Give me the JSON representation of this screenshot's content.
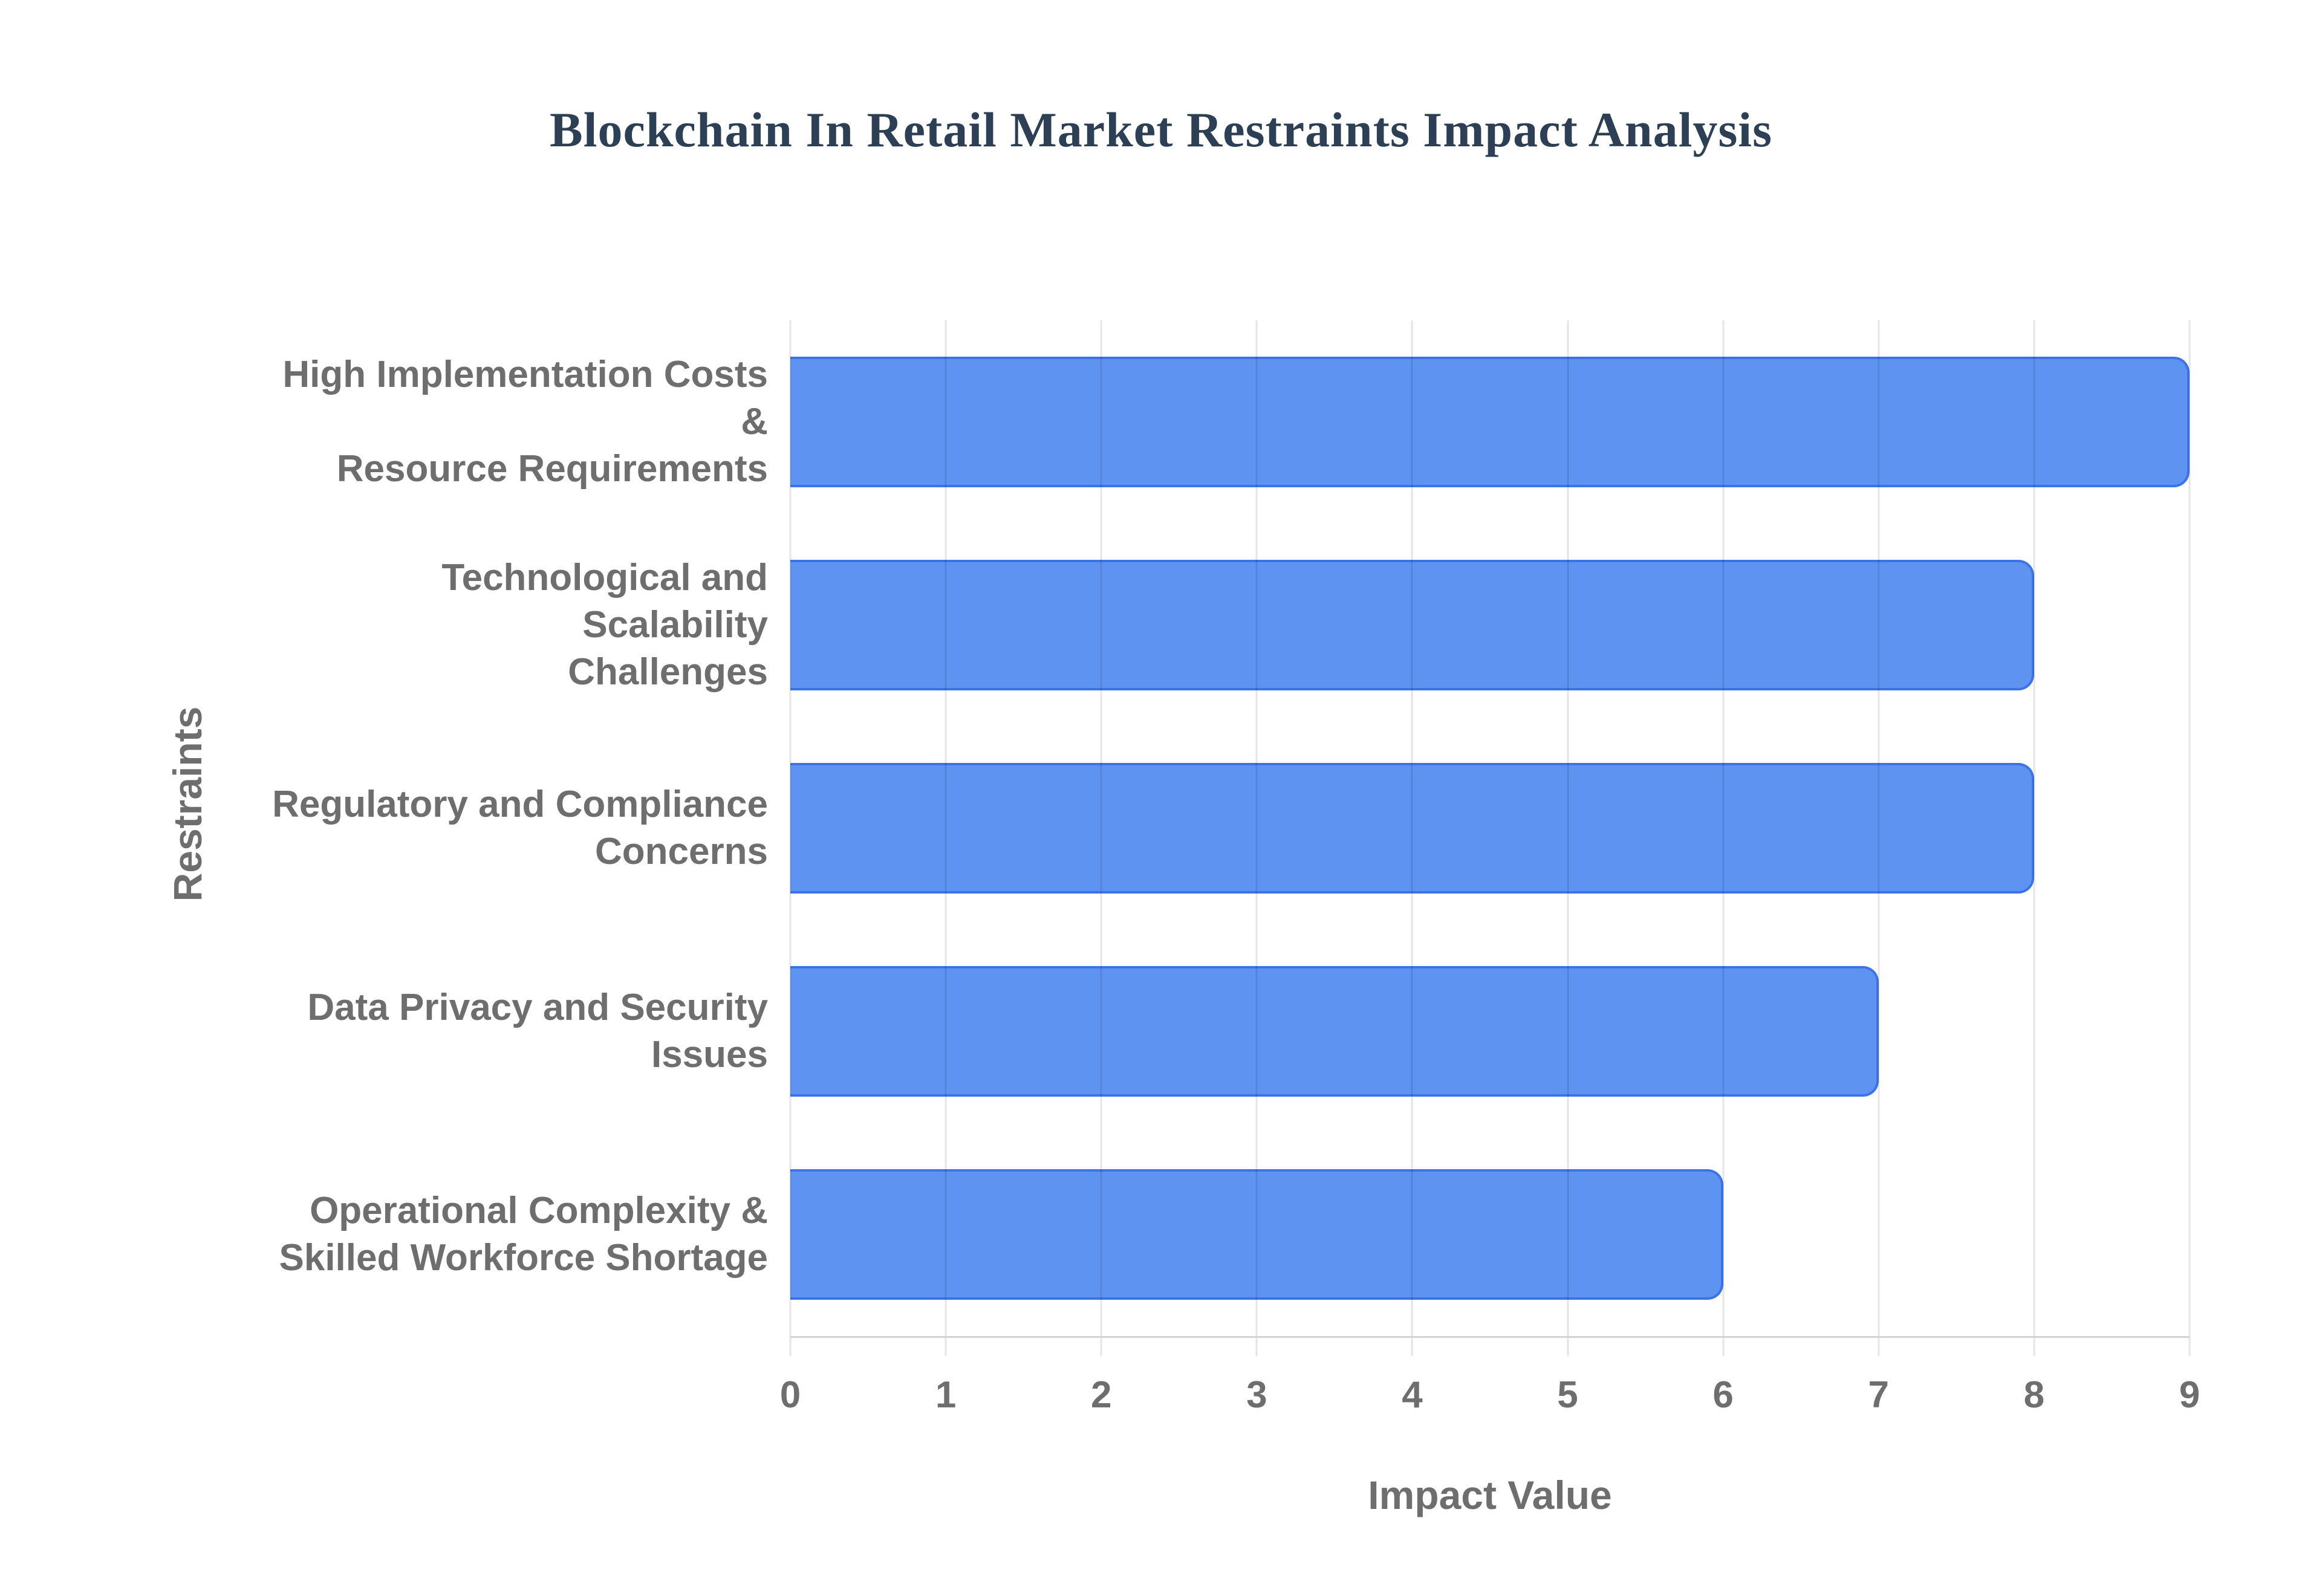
{
  "chart_data": {
    "type": "bar",
    "orientation": "horizontal",
    "title": "Blockchain In Retail Market Restraints Impact Analysis",
    "xlabel": "Impact Value",
    "ylabel": "Restraints",
    "categories": [
      "High Implementation Costs &\nResource Requirements",
      "Technological and Scalability\nChallenges",
      "Regulatory and Compliance\nConcerns",
      "Data Privacy and Security\nIssues",
      "Operational Complexity &\nSkilled Workforce Shortage"
    ],
    "values": [
      9,
      8,
      8,
      7,
      6
    ],
    "xlim": [
      0,
      9
    ],
    "xticks": [
      0,
      1,
      2,
      3,
      4,
      5,
      6,
      7,
      8,
      9
    ],
    "grid": true,
    "legend": false
  },
  "style": {
    "background": "#ffffff",
    "title_color": "#2d3f55",
    "label_color": "#6e6e6e",
    "bar_fill": "#5e93f1",
    "bar_border": "#3d73e8",
    "gridline_color": "rgba(0,0,0,0.10)",
    "axis_line_color": "#d4d4d4"
  }
}
